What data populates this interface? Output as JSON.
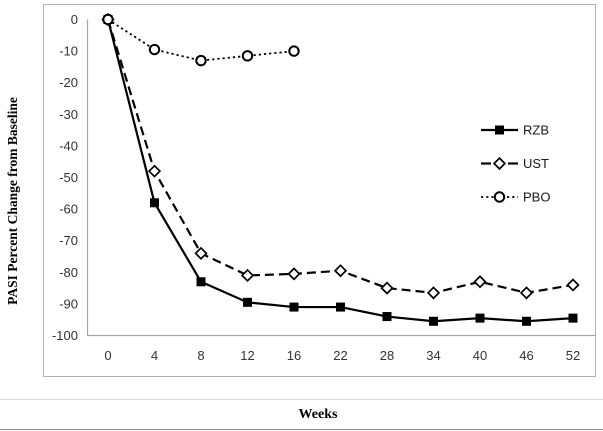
{
  "figure": {
    "y_axis_title": "PASI Percent Change from Baseline",
    "x_axis_title": "Weeks"
  },
  "axes": {
    "y_tick_labels": [
      "0",
      "-10",
      "-20",
      "-30",
      "-40",
      "-50",
      "-60",
      "-70",
      "-80",
      "-90",
      "-100"
    ],
    "x_tick_labels": [
      "0",
      "4",
      "8",
      "12",
      "16",
      "22",
      "28",
      "34",
      "40",
      "46",
      "52"
    ]
  },
  "legend": {
    "labels": [
      "RZB",
      "UST",
      "PBO"
    ]
  },
  "colors": {
    "series": "#000000",
    "frame": "#b3b3b3",
    "axis_line": "#a6a6a6",
    "tick_text": "#333333",
    "legend_text": "#1a1a1a",
    "background": "#ffffff"
  },
  "chart_data": {
    "type": "line",
    "title": "",
    "xlabel": "Weeks",
    "ylabel": "PASI Percent Change from Baseline",
    "x": [
      0,
      4,
      8,
      12,
      16,
      22,
      28,
      34,
      40,
      46,
      52
    ],
    "x_spacing": "categorical-equal",
    "ylim": [
      -100,
      0
    ],
    "yticks": [
      0,
      -10,
      -20,
      -30,
      -40,
      -50,
      -60,
      -70,
      -80,
      -90,
      -100
    ],
    "grid": false,
    "legend_position": "middle-right-inside",
    "series": [
      {
        "name": "RZB",
        "line_style": "solid",
        "marker": "filled-square",
        "color": "#000000",
        "values": [
          0,
          -58,
          -83,
          -89.5,
          -91,
          -91,
          -94,
          -95.5,
          -94.5,
          -95.5,
          -94.5
        ]
      },
      {
        "name": "UST",
        "line_style": "dashed",
        "marker": "open-diamond",
        "color": "#000000",
        "values": [
          0,
          -48,
          -74,
          -81,
          -80.5,
          -79.5,
          -85,
          -86.5,
          -83,
          -86.5,
          -84
        ]
      },
      {
        "name": "PBO",
        "line_style": "dotted",
        "marker": "open-circle",
        "color": "#000000",
        "values": [
          0,
          -9.5,
          -13,
          -11.5,
          -10,
          null,
          null,
          null,
          null,
          null,
          null
        ]
      }
    ]
  }
}
